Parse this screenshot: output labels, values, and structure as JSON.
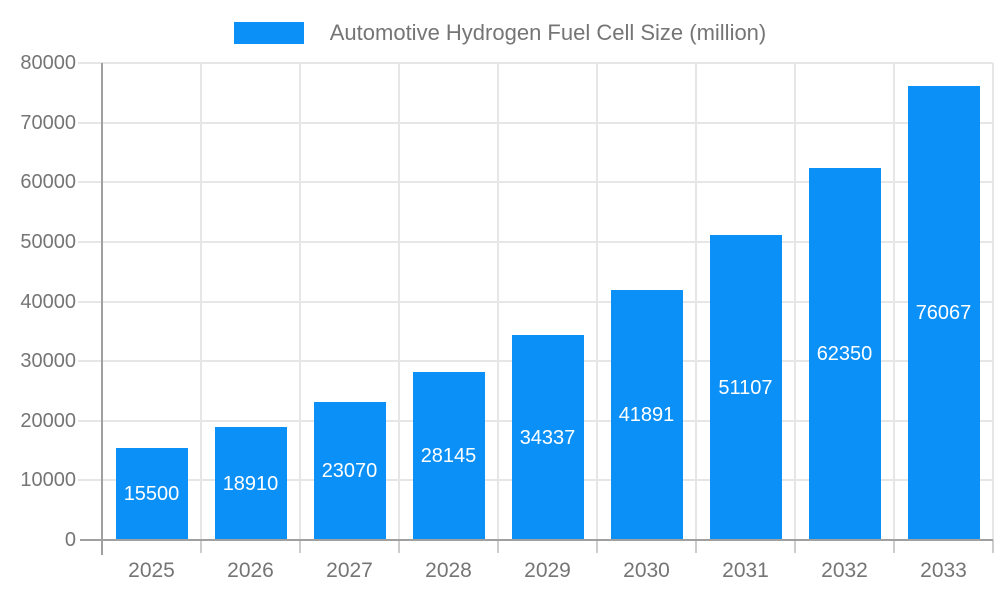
{
  "chart_data": {
    "type": "bar",
    "title": "Automotive Hydrogen Fuel Cell Size (million)",
    "legend_entries": [
      "Automotive Hydrogen Fuel Cell Size (million)"
    ],
    "legend_position": "top-center",
    "categories": [
      "2025",
      "2026",
      "2027",
      "2028",
      "2029",
      "2030",
      "2031",
      "2032",
      "2033"
    ],
    "values": [
      15500,
      18910,
      23070,
      28145,
      34337,
      41891,
      51107,
      62350,
      76067
    ],
    "value_labels": [
      "15500",
      "18910",
      "23070",
      "28145",
      "34337",
      "41891",
      "51107",
      "62350",
      "76067"
    ],
    "xlabel": "",
    "ylabel": "",
    "ylim": [
      0,
      80000
    ],
    "ytick_interval": 10000,
    "ytick_labels": [
      "0",
      "10000",
      "20000",
      "30000",
      "40000",
      "50000",
      "60000",
      "70000",
      "80000"
    ],
    "grid": true,
    "value_labels_inside_bars": true,
    "colors": {
      "bar": "#0b90f8",
      "value_label": "#ffffff",
      "axis_label": "#757575",
      "legend_text": "#757575",
      "gridline": "#e6e6e6",
      "tick": "#cccccc",
      "axis_line": "#a0a0a0",
      "background": "#ffffff"
    }
  }
}
